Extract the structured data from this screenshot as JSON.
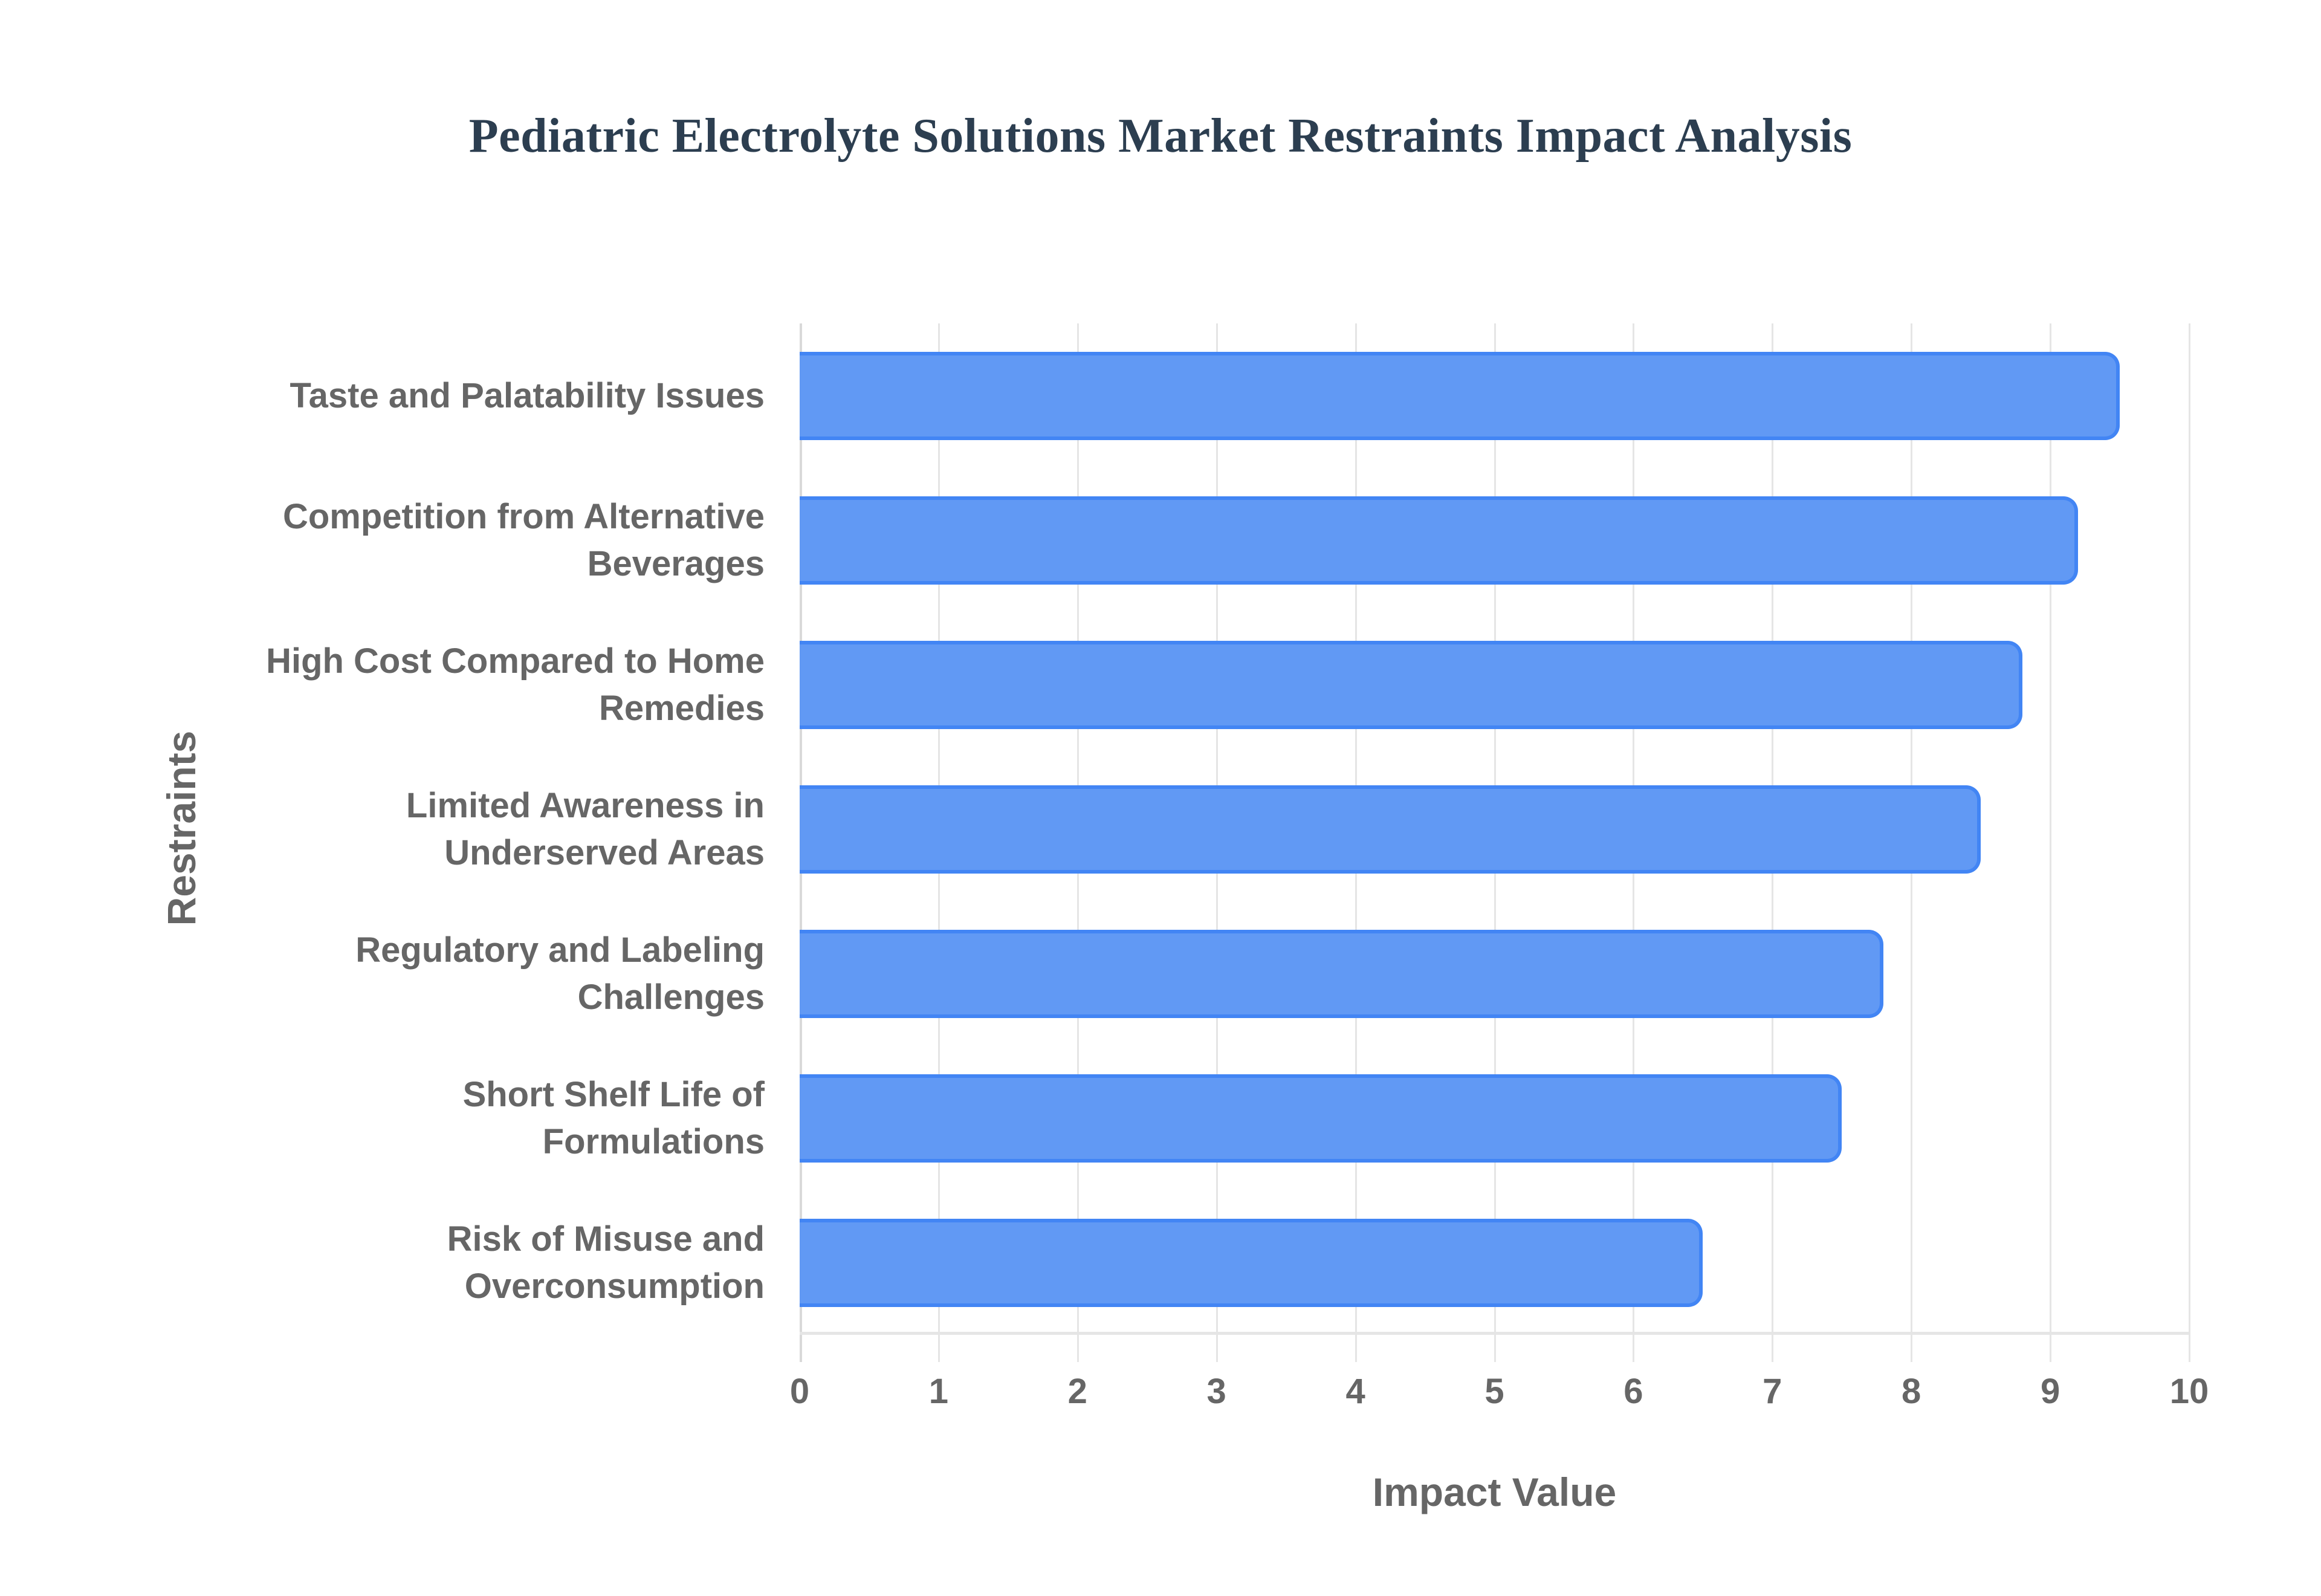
{
  "chart_data": {
    "type": "bar",
    "orientation": "horizontal",
    "title": "Pediatric Electrolyte Solutions Market Restraints Impact Analysis",
    "xlabel": "Impact Value",
    "ylabel": "Restraints",
    "xlim": [
      0,
      10
    ],
    "x_ticks": [
      "0",
      "1",
      "2",
      "3",
      "4",
      "5",
      "6",
      "7",
      "8",
      "9",
      "10"
    ],
    "grid": true,
    "legend": null,
    "categories": [
      "Taste and Palatability Issues",
      "Competition from Alternative Beverages",
      "High Cost Compared to Home Remedies",
      "Limited Awareness in Underserved Areas",
      "Regulatory and Labeling Challenges",
      "Short Shelf Life of Formulations",
      "Risk of Misuse and Overconsumption"
    ],
    "category_display_lines": [
      [
        "Taste and Palatability Issues"
      ],
      [
        "Competition from Alternative",
        "Beverages"
      ],
      [
        "High Cost Compared to Home",
        "Remedies"
      ],
      [
        "Limited Awareness in",
        "Underserved Areas"
      ],
      [
        "Regulatory and Labeling",
        "Challenges"
      ],
      [
        "Short Shelf Life of",
        "Formulations"
      ],
      [
        "Risk of Misuse and",
        "Overconsumption"
      ]
    ],
    "values": [
      9.5,
      9.2,
      8.8,
      8.5,
      7.8,
      7.5,
      6.5
    ],
    "colors": {
      "bar_fill": "#6199f4",
      "bar_border": "#4285f4",
      "title": "#2c3e50",
      "axis_text": "#666666",
      "grid": "#e5e5e5"
    }
  }
}
